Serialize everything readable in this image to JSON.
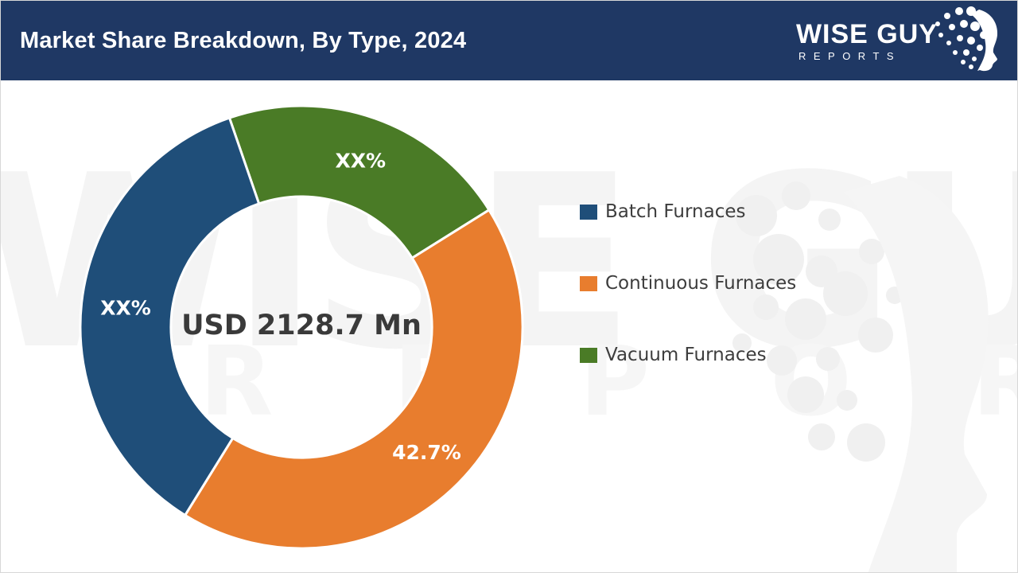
{
  "header": {
    "title": "Market Share Breakdown, By Type, 2024",
    "background_color": "#1f3864",
    "logo": {
      "line1": "WISE GUY",
      "line2": "REPORTS"
    }
  },
  "watermark": {
    "line1": "WISE GUY",
    "line2": "R E P O R T S"
  },
  "chart_data": {
    "type": "pie",
    "subtype": "donut",
    "title": "Market Share Breakdown, By Type, 2024",
    "center_label": "USD 2128.7 Mn",
    "start_angle_deg": -19,
    "direction": "clockwise",
    "inner_radius_ratio": 0.59,
    "series": [
      {
        "name": "Vacuum Furnaces",
        "display_label": "XX%",
        "value_pct_estimated": 21.4,
        "color": "#4a7b26"
      },
      {
        "name": "Continuous Furnaces",
        "display_label": "42.7%",
        "value_pct_estimated": 42.7,
        "color": "#e87d2e"
      },
      {
        "name": "Batch Furnaces",
        "display_label": "XX%",
        "value_pct_estimated": 35.9,
        "color": "#1f4e79"
      }
    ],
    "legend": {
      "position": "right",
      "items": [
        {
          "label": "Batch Furnaces",
          "color": "#1f4e79"
        },
        {
          "label": "Continuous Furnaces",
          "color": "#e87d2e"
        },
        {
          "label": "Vacuum Furnaces",
          "color": "#4a7b26"
        }
      ]
    }
  }
}
